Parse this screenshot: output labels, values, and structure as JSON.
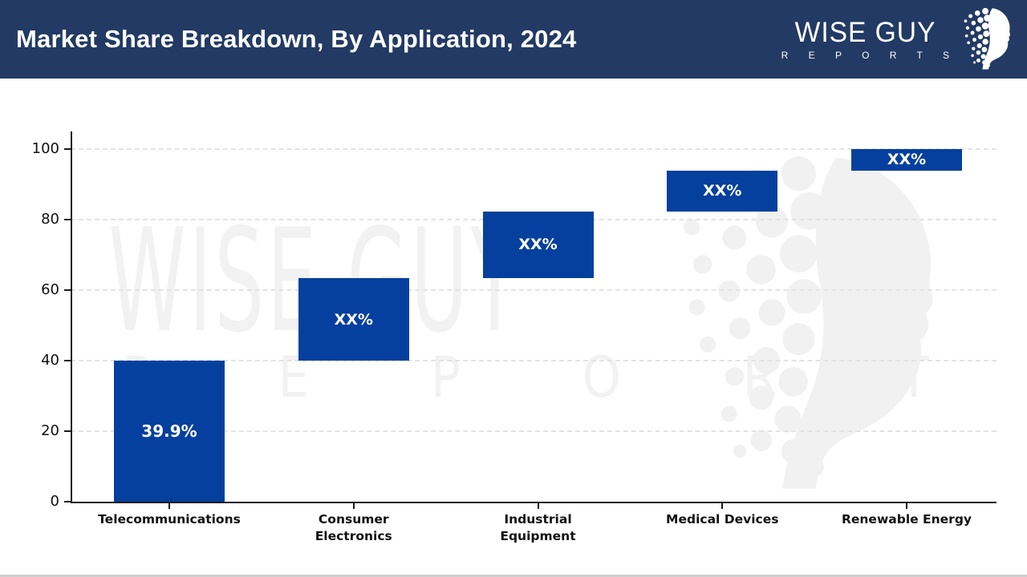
{
  "header": {
    "title": "Market Share Breakdown, By Application, 2024",
    "logo": {
      "line1": "WISE GUY",
      "line2": "R E P O R T S"
    }
  },
  "watermark": {
    "line1": "WISE GUY",
    "line2": "R E P O R T S"
  },
  "chart_data": {
    "type": "bar",
    "subtype": "waterfall",
    "title": "Market Share Breakdown, By Application, 2024",
    "categories": [
      "Telecommunications",
      "Consumer Electronics",
      "Industrial Equipment",
      "Medical Devices",
      "Renewable Energy"
    ],
    "segments": [
      {
        "name": "Telecommunications",
        "tick_label": "Telecommunications",
        "start": 0,
        "end": 39.9,
        "label": "39.9%"
      },
      {
        "name": "Consumer Electronics",
        "tick_label": "Consumer\nElectronics",
        "start": 39.9,
        "end": 63.4,
        "label": "XX%"
      },
      {
        "name": "Industrial Equipment",
        "tick_label": "Industrial\nEquipment",
        "start": 63.4,
        "end": 82.3,
        "label": "XX%"
      },
      {
        "name": "Medical Devices",
        "tick_label": "Medical Devices",
        "start": 82.3,
        "end": 93.9,
        "label": "XX%"
      },
      {
        "name": "Renewable Energy",
        "tick_label": "Renewable Energy",
        "start": 93.9,
        "end": 100,
        "label": "XX%"
      }
    ],
    "y_ticks": [
      0,
      20,
      40,
      60,
      80,
      100
    ],
    "ylim": [
      0,
      104
    ],
    "xlabel": "",
    "ylabel": "",
    "grid": "horizontal-dashed",
    "legend": "none",
    "bar_color": "#05409e",
    "value_label_color": "#ffffff",
    "header_color": "#223a64"
  }
}
